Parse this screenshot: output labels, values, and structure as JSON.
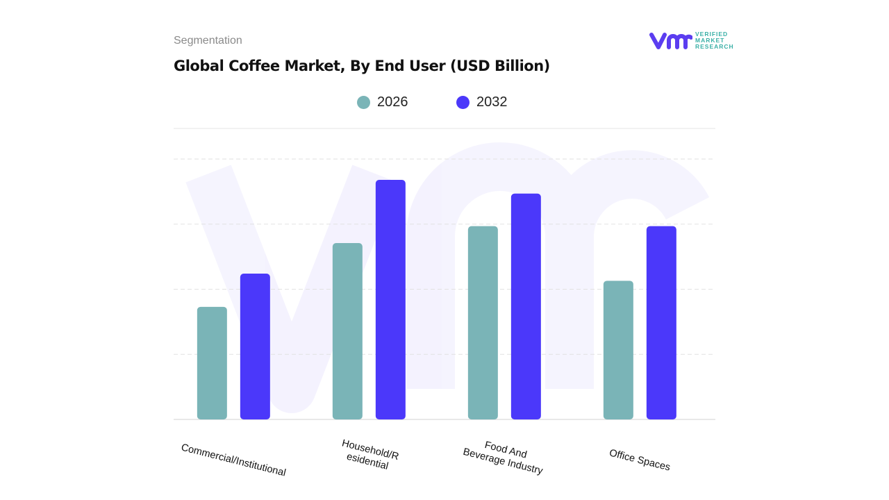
{
  "header": {
    "segment_label": "Segmentation",
    "logo_text": [
      "VERIFIED",
      "MARKET",
      "RESEARCH"
    ]
  },
  "colors": {
    "2026": "#7ab4b7",
    "2032": "#4b38fa",
    "brand": "#5b3df0",
    "brand_text": "#3bb0a7"
  },
  "chart_data": {
    "type": "bar",
    "title": "Global Coffee Market, By End User (USD Billion)",
    "categories": [
      "Commercial/Institutional",
      "Household/R\nesidential",
      "Food And\nBeverage Industry",
      "Office Spaces"
    ],
    "series": [
      {
        "name": "2026",
        "values": [
          1.73,
          2.71,
          2.97,
          2.13
        ]
      },
      {
        "name": "2032",
        "values": [
          2.24,
          3.68,
          3.47,
          2.97
        ]
      }
    ],
    "xlabel": "",
    "ylabel": "",
    "ylim": [
      0,
      4.47
    ],
    "grid": true,
    "legend": "top-center",
    "y_tick_labels_shown": false
  }
}
